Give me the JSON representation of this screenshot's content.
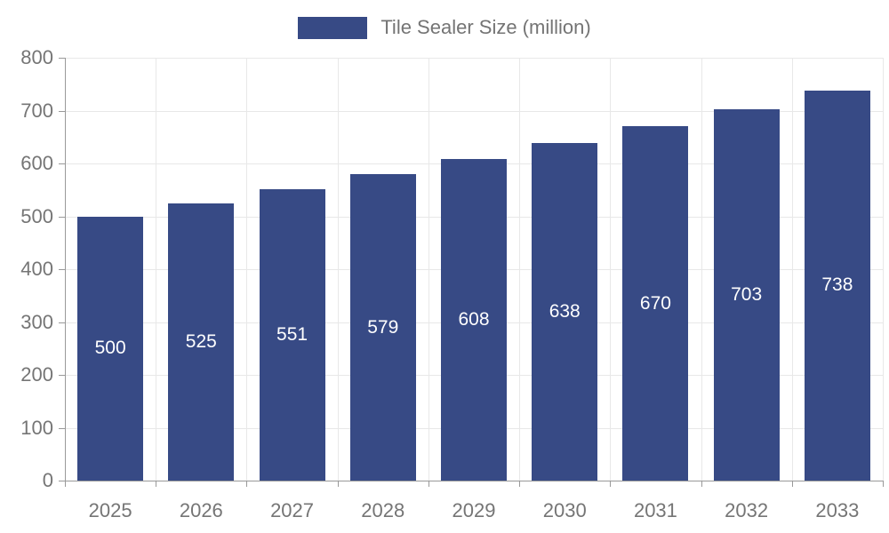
{
  "chart_data": {
    "type": "bar",
    "title": "",
    "legend_label": "Tile Sealer Size (million)",
    "legend_position": "top",
    "categories": [
      "2025",
      "2026",
      "2027",
      "2028",
      "2029",
      "2030",
      "2031",
      "2032",
      "2033"
    ],
    "series": [
      {
        "name": "Tile Sealer Size (million)",
        "values": [
          500,
          525,
          551,
          579,
          608,
          638,
          670,
          703,
          738
        ]
      }
    ],
    "value_labels": [
      "500",
      "525",
      "551",
      "579",
      "608",
      "638",
      "670",
      "703",
      "738"
    ],
    "ylim": [
      0,
      800
    ],
    "yticks": [
      0,
      100,
      200,
      300,
      400,
      500,
      600,
      700,
      800
    ],
    "grid": true,
    "colors": {
      "bar": "#374A85",
      "grid": "#e8e8e8",
      "axis": "#999999",
      "tick_text": "#757575",
      "legend_text": "#747474",
      "value_label": "#ffffff",
      "background": "#ffffff"
    }
  }
}
